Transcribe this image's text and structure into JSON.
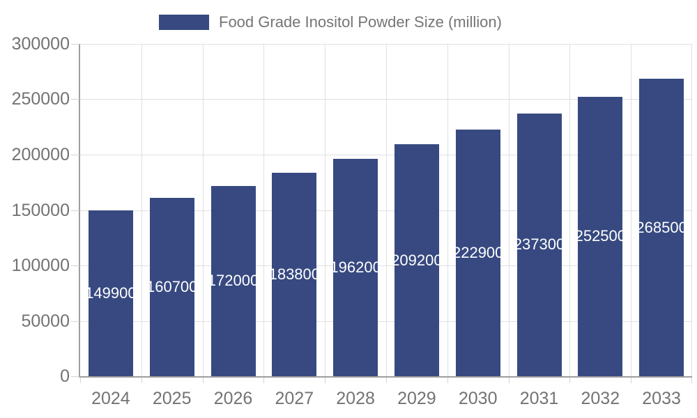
{
  "chart_data": {
    "type": "bar",
    "title": "",
    "legend": "Food Grade Inositol Powder Size (million)",
    "categories": [
      "2024",
      "2025",
      "2026",
      "2027",
      "2028",
      "2029",
      "2030",
      "2031",
      "2032",
      "2033"
    ],
    "values": [
      149900,
      160700,
      172000,
      183800,
      196200,
      209200,
      222900,
      237300,
      252500,
      268500
    ],
    "series": [
      {
        "name": "Food Grade Inositol Powder Size (million)",
        "values": [
          149900,
          160700,
          172000,
          183800,
          196200,
          209200,
          222900,
          237300,
          252500,
          268500
        ]
      }
    ],
    "xlabel": "",
    "ylabel": "",
    "ylim": [
      0,
      300000
    ],
    "ytick_interval": 50000,
    "yticks": [
      "300000",
      "250000",
      "200000",
      "150000",
      "100000",
      "50000",
      "0"
    ],
    "value_labels_inside_bars": true,
    "grid": "horizontal and vertical light gray",
    "legend_position": "top",
    "colors": {
      "bar": "#374980",
      "value_label": "#ffffff",
      "tick_label": "#737373",
      "legend_text": "#757575",
      "gridline": "#e0e0e0",
      "axis_line": "#9e9e9e",
      "tick_mark": "#d4d4d4",
      "background": "#ffffff"
    }
  }
}
